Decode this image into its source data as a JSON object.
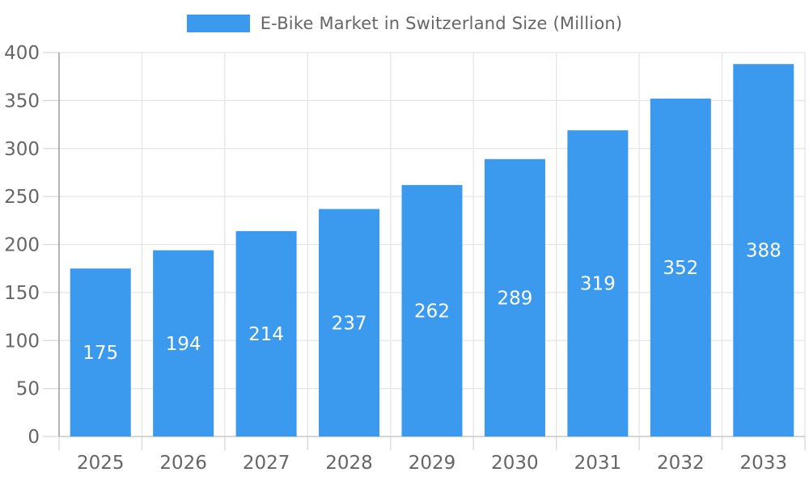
{
  "chart_data": {
    "type": "bar",
    "title": "E-Bike Market in Switzerland Size (Million)",
    "categories": [
      "2025",
      "2026",
      "2027",
      "2028",
      "2029",
      "2030",
      "2031",
      "2032",
      "2033"
    ],
    "values": [
      175,
      194,
      214,
      237,
      262,
      289,
      319,
      352,
      388
    ],
    "xlabel": "",
    "ylabel": "",
    "ylim": [
      0,
      400
    ],
    "yticks": [
      0,
      50,
      100,
      150,
      200,
      250,
      300,
      350,
      400
    ],
    "grid": true,
    "legend_position": "top",
    "value_labels": "inside-center",
    "colors": {
      "bar": "#3B9AEE",
      "grid": "#E5E5E5",
      "tick": "#D8D8D8",
      "y_axis": "#999999",
      "x_axis": "#C8C8C8",
      "axis_text": "#666666",
      "legend_text": "#666666",
      "value_text": "#FFFFFF",
      "background": "#FFFFFF"
    }
  }
}
